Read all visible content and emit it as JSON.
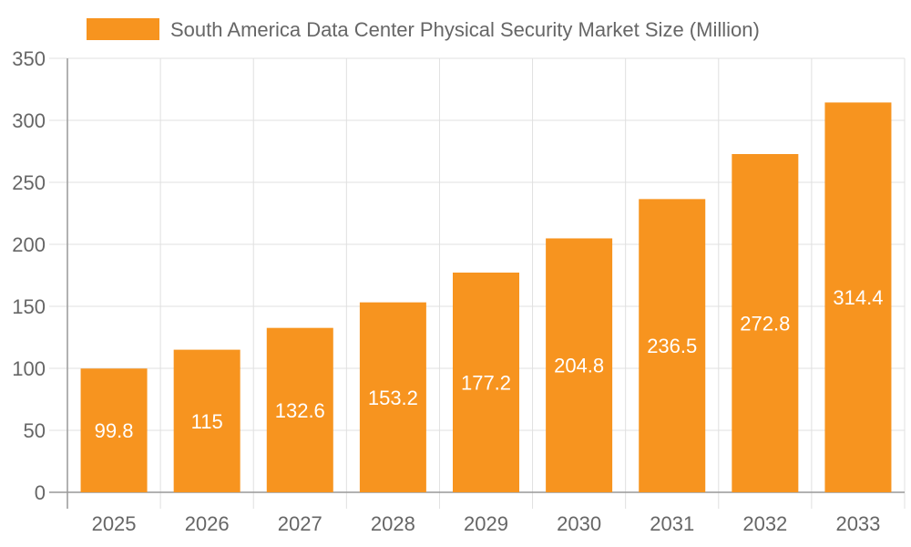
{
  "chart_data": {
    "type": "bar",
    "categories": [
      "2025",
      "2026",
      "2027",
      "2028",
      "2029",
      "2030",
      "2031",
      "2032",
      "2033"
    ],
    "series": [
      {
        "name": "South America Data Center Physical Security Market Size (Million)",
        "values": [
          99.8,
          115,
          132.6,
          153.2,
          177.2,
          204.8,
          236.5,
          272.8,
          314.4
        ],
        "data_labels": [
          "99.8",
          "115",
          "132.6",
          "153.2",
          "177.2",
          "204.8",
          "236.5",
          "272.8",
          "314.4"
        ]
      }
    ],
    "ylim": [
      0,
      350
    ],
    "yticks": [
      "0",
      "50",
      "100",
      "150",
      "200",
      "250",
      "300",
      "350"
    ],
    "grid": true,
    "legend_position": "top",
    "colors": {
      "bar": "#F7941F",
      "grid": "#e0e0e0",
      "axis": "#999999",
      "text": "#666666"
    }
  }
}
